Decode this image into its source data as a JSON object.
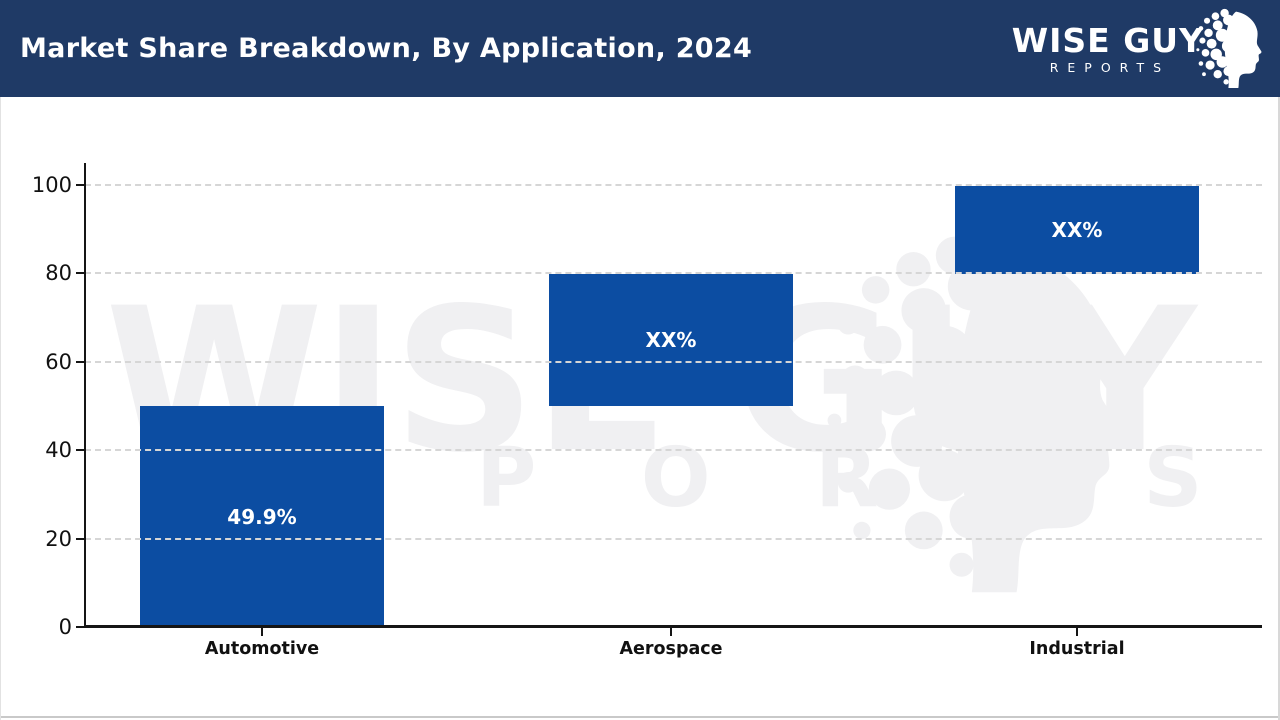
{
  "header": {
    "title": "Market Share Breakdown, By Application, 2024",
    "bg_color": "#1f3a66",
    "logo": {
      "line1": "WISE GUY",
      "line2": "REPORTS"
    }
  },
  "watermark": {
    "line1": "WISE GUY",
    "line2": "R E P O R T S",
    "color": "#f0f0f2"
  },
  "chart_data": {
    "type": "bar",
    "subtype": "floating-cumulative-segments",
    "title": "Market Share Breakdown, By Application, 2024",
    "categories": [
      "Automotive",
      "Aerospace",
      "Industrial"
    ],
    "segments": [
      {
        "category": "Automotive",
        "start": 0,
        "end": 49.9,
        "label": "49.9%"
      },
      {
        "category": "Aerospace",
        "start": 49.9,
        "end": 79.8,
        "label": "XX%"
      },
      {
        "category": "Industrial",
        "start": 79.8,
        "end": 99.8,
        "label": "XX%"
      }
    ],
    "yticks": [
      0,
      20,
      40,
      60,
      80,
      100
    ],
    "ylim": [
      0,
      105
    ],
    "xlabel": "",
    "ylabel": "",
    "grid": "horizontal-dashed",
    "legend": "none",
    "bar_color": "#0c4da2",
    "value_label_color": "#ffffff",
    "axis_color": "#151515"
  }
}
